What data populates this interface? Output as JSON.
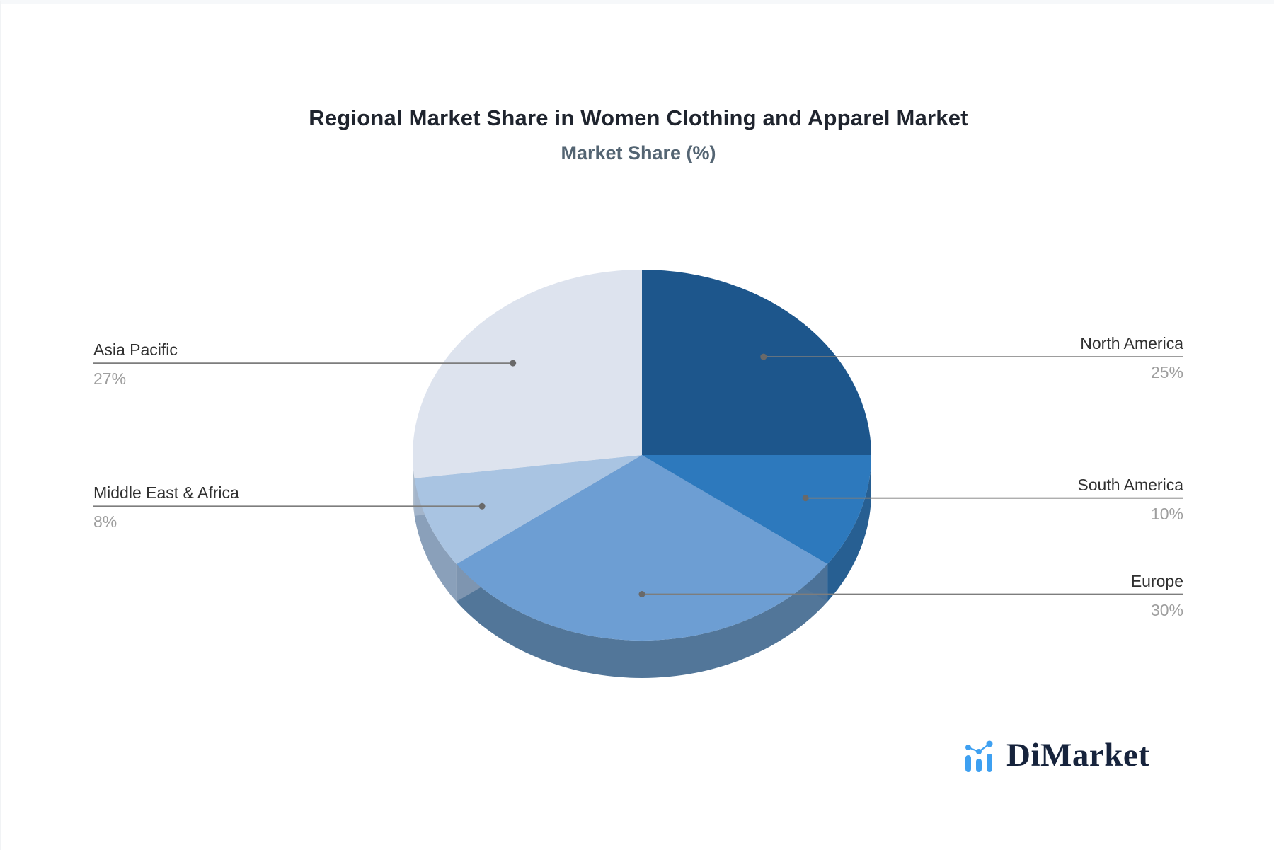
{
  "header": {
    "title": "Regional Market Share in Women Clothing and Apparel Market",
    "subtitle": "Market Share (%)"
  },
  "chart_data": {
    "type": "pie",
    "title": "Regional Market Share in Women Clothing and Apparel Market",
    "subtitle": "Market Share (%)",
    "unit": "%",
    "total": 100,
    "style": "3d-pie",
    "start_angle": "12-oclock",
    "direction": "clockwise",
    "slices": [
      {
        "label": "North America",
        "value": 25,
        "pct_label": "25%",
        "color": "#1d568c",
        "depth_color": "#1a4d7e",
        "side": "right"
      },
      {
        "label": "South America",
        "value": 10,
        "pct_label": "10%",
        "color": "#2d79bd",
        "depth_color": "#275f92",
        "side": "right"
      },
      {
        "label": "Europe",
        "value": 30,
        "pct_label": "30%",
        "color": "#6d9ed3",
        "depth_color": "#527699",
        "side": "right"
      },
      {
        "label": "Middle East & Africa",
        "value": 8,
        "pct_label": "8%",
        "color": "#a9c4e2",
        "depth_color": "#8aa0ba",
        "side": "left"
      },
      {
        "label": "Asia Pacific",
        "value": 27,
        "pct_label": "27%",
        "color": "#dde3ee",
        "depth_color": "#b2bfcd",
        "side": "left"
      }
    ],
    "leader": {
      "line_color": "#7d7d7d",
      "dot_color": "#696969"
    }
  },
  "logo": {
    "text": "DiMarket",
    "icon": "bar-chart-trend-icon",
    "icon_color": "#3ea0f1",
    "text_color": "#16233c"
  }
}
